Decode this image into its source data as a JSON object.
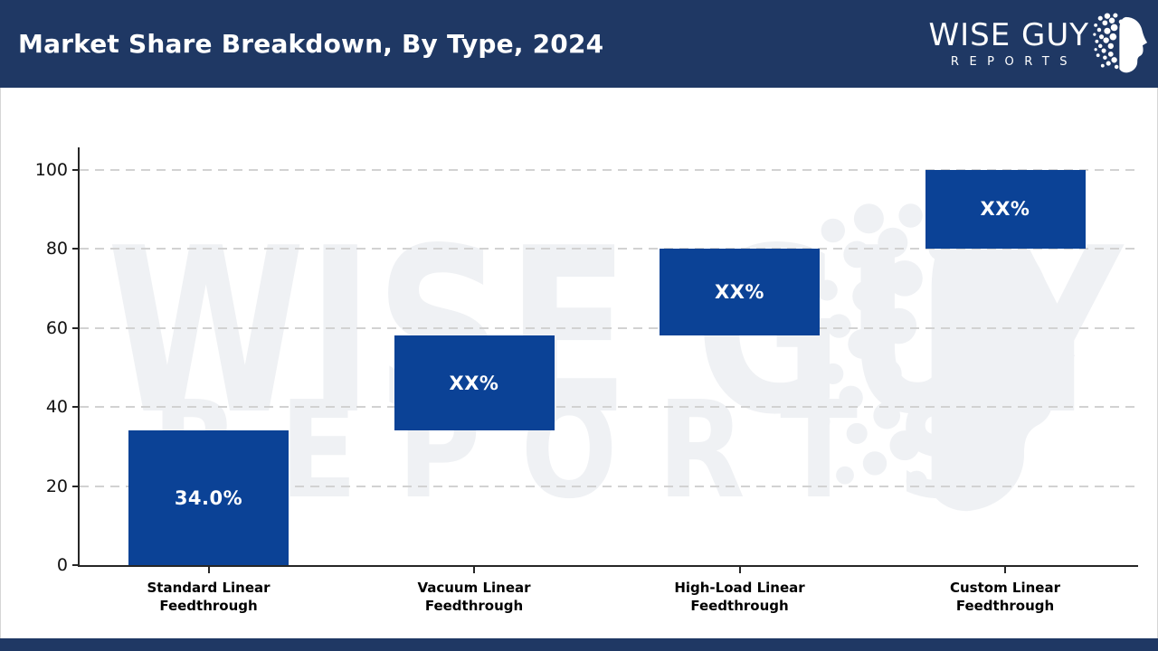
{
  "header": {
    "title": "Market Share Breakdown, By Type, 2024",
    "bg_color": "#1f3864",
    "logo": {
      "line1": "WISE GUY",
      "line2": "REPORTS"
    }
  },
  "watermark": {
    "line1": "WISE GUY",
    "line2": "REPORTS"
  },
  "footer": {
    "bg_color": "#1f3864"
  },
  "chart_data": {
    "type": "bar",
    "variant": "waterfall",
    "title": "Market Share Breakdown, By Type, 2024",
    "categories": [
      "Standard Linear Feedthrough",
      "Vacuum Linear Feedthrough",
      "High-Load Linear Feedthrough",
      "Custom Linear Feedthrough"
    ],
    "category_lines": [
      [
        "Standard Linear",
        "Feedthrough"
      ],
      [
        "Vacuum Linear",
        "Feedthrough"
      ],
      [
        "High-Load Linear",
        "Feedthrough"
      ],
      [
        "Custom Linear",
        "Feedthrough"
      ]
    ],
    "values": [
      34,
      24,
      22,
      20
    ],
    "cumulative_starts": [
      0,
      34,
      58,
      80
    ],
    "bar_labels": [
      "34.0%",
      "XX%",
      "XX%",
      "XX%"
    ],
    "ylabel": "",
    "xlabel": "",
    "yticks": [
      0,
      20,
      40,
      60,
      80,
      100
    ],
    "ylim": [
      0,
      105
    ],
    "grid": "dashed-horizontal",
    "legend": "none",
    "colors": {
      "bar": "#0b4296",
      "grid": "#d2d2d2",
      "axis": "#262626",
      "tick_label": "#111111",
      "bar_label": "#ffffff"
    }
  }
}
